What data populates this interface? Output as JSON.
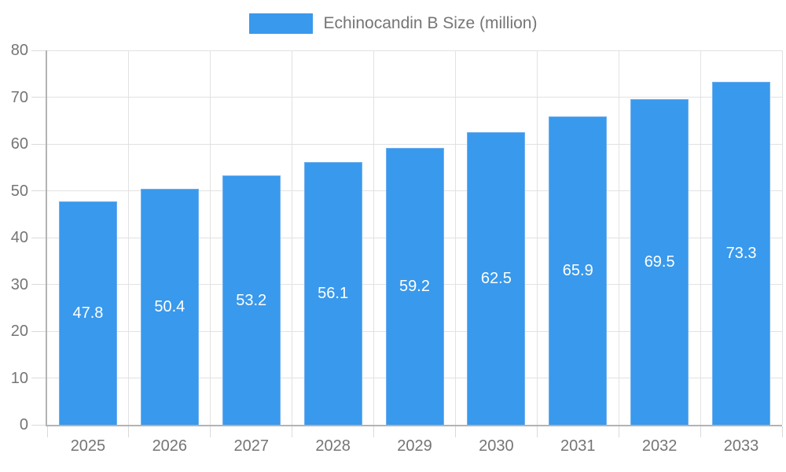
{
  "chart_data": {
    "type": "bar",
    "title": "Echinocandin B Size (million)",
    "series_name": "Echinocandin B Size (million)",
    "categories": [
      "2025",
      "2026",
      "2027",
      "2028",
      "2029",
      "2030",
      "2031",
      "2032",
      "2033"
    ],
    "values": [
      47.8,
      50.4,
      53.2,
      56.1,
      59.2,
      62.5,
      65.9,
      69.5,
      73.3
    ],
    "value_labels": [
      "47.8",
      "50.4",
      "53.2",
      "56.1",
      "59.2",
      "62.5",
      "65.9",
      "69.5",
      "73.3"
    ],
    "xlabel": "",
    "ylabel": "",
    "ylim": [
      0,
      80
    ],
    "ytick_step": 10,
    "yticks": [
      0,
      10,
      20,
      30,
      40,
      50,
      60,
      70,
      80
    ],
    "grid": true,
    "legend_position": "top-center",
    "value_label_position": "inside-center"
  },
  "colors": {
    "bar": "#3999EC",
    "bar_border": "#6FB0F0",
    "grid": "#E2E2E2",
    "axis": "#B3B3B3",
    "tick": "#DADADA",
    "tick_label": "#757575",
    "value_label": "#FFFFFF",
    "background": "#FFFFFF"
  }
}
